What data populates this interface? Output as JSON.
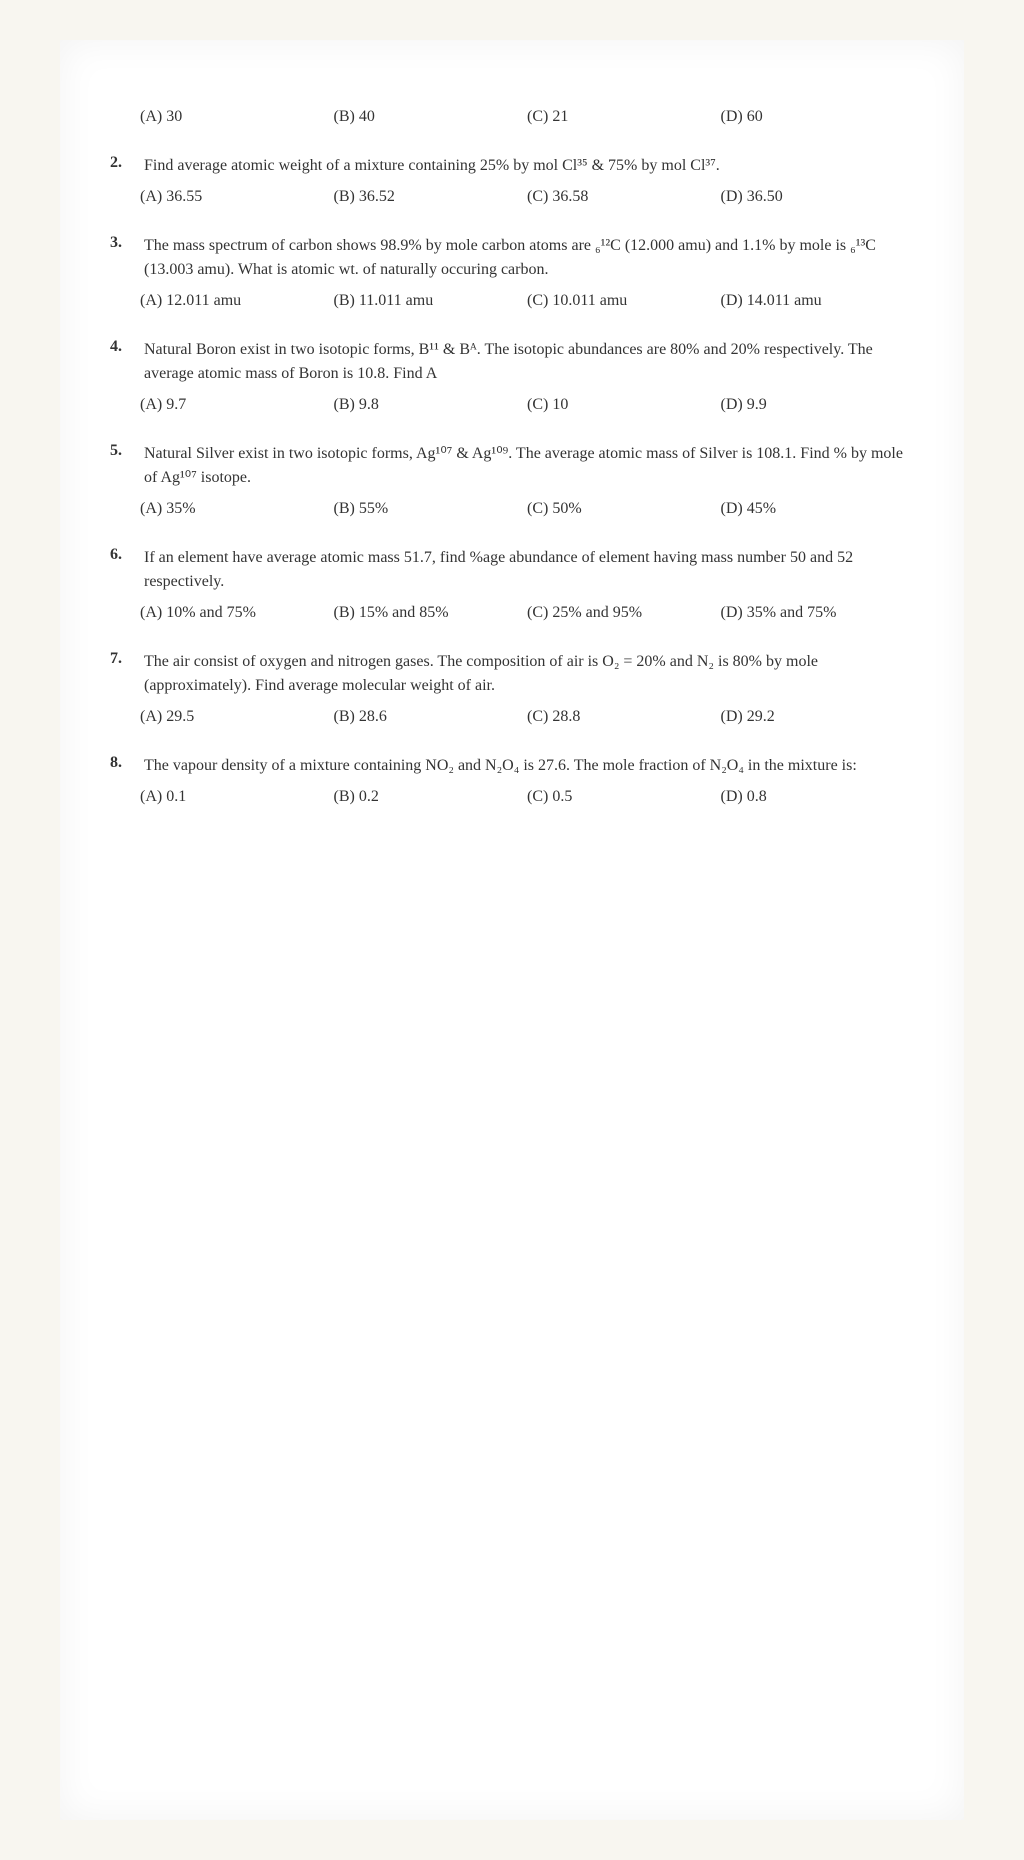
{
  "questions": [
    {
      "number": " ",
      "text": "",
      "options": [
        "(A) 30",
        "(B) 40",
        "(C) 21",
        "(D) 60"
      ]
    },
    {
      "number": "2.",
      "text": "Find average atomic weight of a mixture containing 25% by mol Cl³⁵ & 75% by mol Cl³⁷.",
      "options": [
        "(A) 36.55",
        "(B) 36.52",
        "(C) 36.58",
        "(D) 36.50"
      ]
    },
    {
      "number": "3.",
      "text": "The mass spectrum of carbon shows 98.9% by mole carbon atoms are ₆¹²C (12.000 amu) and 1.1% by mole is ₆¹³C (13.003 amu). What is atomic wt. of naturally occuring carbon.",
      "options": [
        "(A) 12.011 amu",
        "(B) 11.011 amu",
        "(C) 10.011 amu",
        "(D) 14.011 amu"
      ]
    },
    {
      "number": "4.",
      "text": "Natural Boron exist in two isotopic forms, B¹¹ & Bᴬ. The isotopic abundances are 80% and 20% respectively. The average atomic mass of Boron is 10.8. Find A",
      "options": [
        "(A) 9.7",
        "(B) 9.8",
        "(C) 10",
        "(D) 9.9"
      ]
    },
    {
      "number": "5.",
      "text": "Natural Silver exist in two isotopic forms, Ag¹⁰⁷ & Ag¹⁰⁹. The average atomic mass of Silver is 108.1. Find % by mole of Ag¹⁰⁷ isotope.",
      "options": [
        "(A) 35%",
        "(B) 55%",
        "(C) 50%",
        "(D) 45%"
      ]
    },
    {
      "number": "6.",
      "text": "If an element have average atomic mass 51.7, find %age abundance of element having mass number 50 and 52 respectively.",
      "options": [
        "(A) 10% and 75%",
        "(B) 15% and 85%",
        "(C) 25% and 95%",
        "(D) 35% and 75%"
      ]
    },
    {
      "number": "7.",
      "text": "The air consist of oxygen and nitrogen gases. The composition of air is O₂ = 20% and N₂ is 80% by mole (approximately). Find average molecular weight of air.",
      "options": [
        "(A) 29.5",
        "(B) 28.6",
        "(C) 28.8",
        "(D) 29.2"
      ]
    },
    {
      "number": "8.",
      "text": "The vapour density of a mixture containing NO₂ and N₂O₄ is 27.6. The mole fraction of N₂O₄ in the mixture is:",
      "options": [
        "(A) 0.1",
        "(B) 0.2",
        "(C) 0.5",
        "(D) 0.8"
      ]
    }
  ],
  "styling": {
    "background_color": "#f8f6f0",
    "page_color": "#ffffff",
    "text_color": "#333333",
    "font_family": "Times New Roman",
    "font_size": 17
  }
}
